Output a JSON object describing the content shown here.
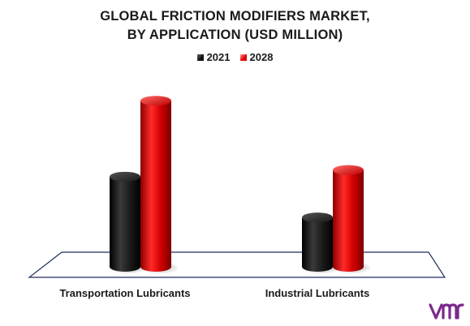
{
  "chart_data": {
    "type": "bar",
    "title_line1": "GLOBAL FRICTION MODIFIERS MARKET,",
    "title_line2": "BY APPLICATION (USD MILLION)",
    "categories": [
      "Transportation Lubricants",
      "Industrial Lubricants"
    ],
    "series": [
      {
        "name": "2021",
        "values": [
          95,
          52
        ],
        "color": "#1a1a1a"
      },
      {
        "name": "2028",
        "values": [
          175,
          102
        ],
        "color": "#e00000"
      }
    ],
    "ylim": [
      0,
      200
    ],
    "grid": false,
    "legend_position": "top-center",
    "style": "3d-cylinder"
  },
  "brand": {
    "logo_name": "vmr-logo",
    "logo_color": "#7b2a8c"
  }
}
